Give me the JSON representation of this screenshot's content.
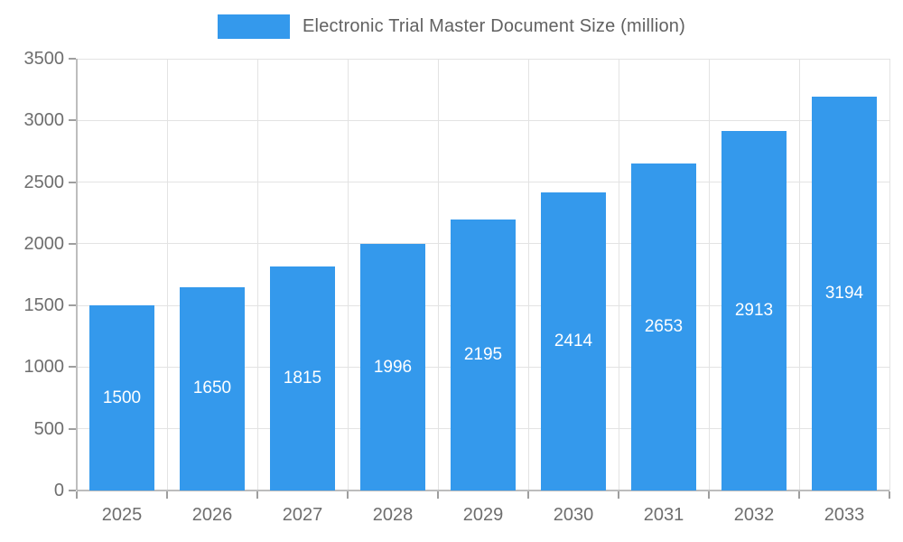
{
  "chart_data": {
    "type": "bar",
    "title": "Electronic Trial Master Document Size (million)",
    "categories": [
      "2025",
      "2026",
      "2027",
      "2028",
      "2029",
      "2030",
      "2031",
      "2032",
      "2033"
    ],
    "values": [
      1500,
      1650,
      1815,
      1996,
      2195,
      2414,
      2653,
      2913,
      3194
    ],
    "xlabel": "",
    "ylabel": "",
    "ylim": [
      0,
      3500
    ],
    "yticks": [
      0,
      500,
      1000,
      1500,
      2000,
      2500,
      3000,
      3500
    ],
    "grid": true,
    "legend_position": "top",
    "colors": {
      "bar": "#3499EC",
      "bar_value_label": "#ffffff",
      "grid": "#e3e3e3",
      "axis": "#bdbdbd",
      "axis_text": "#6e6e6e",
      "legend_text": "#616161"
    }
  }
}
